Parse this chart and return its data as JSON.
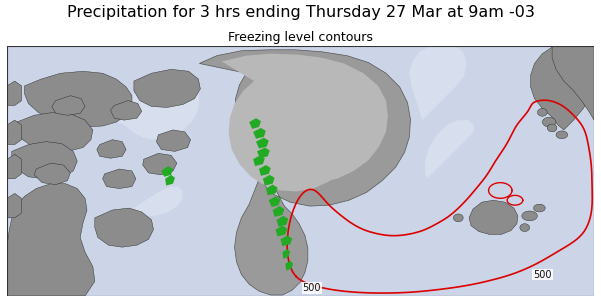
{
  "title": "Precipitation for 3 hrs ending Thursday 27 Mar at 9am -03",
  "subtitle": "Freezing level contours",
  "title_fontsize": 11.5,
  "subtitle_fontsize": 9,
  "ocean_color": "#ccd5e8",
  "land_color": "#8c8c8c",
  "land_edge": "#222222",
  "ice_color": "#b0b0b0",
  "green_color": "#22aa22",
  "contour_color": "#dd0000",
  "fig_width": 6.01,
  "fig_height": 2.96,
  "dpi": 100
}
